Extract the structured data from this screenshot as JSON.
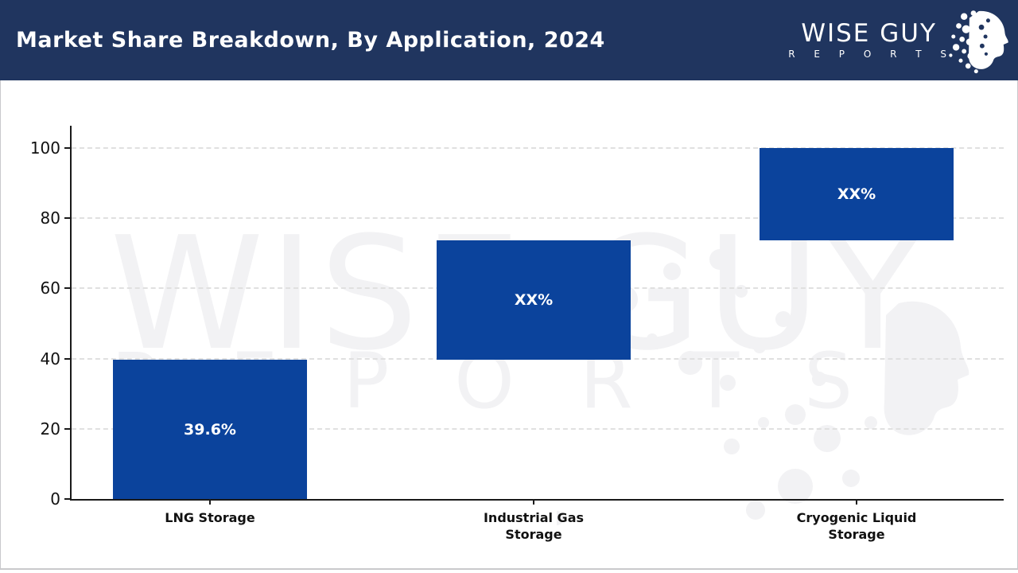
{
  "header": {
    "title": "Market Share Breakdown, By Application, 2024",
    "logo": {
      "line1": "WISE GUY",
      "line2": "R E P O R T S"
    }
  },
  "watermark": {
    "line1": "WISE GUY",
    "line2": "REPORTS"
  },
  "colors": {
    "header_bg": "#20355f",
    "bar": "#0b439c",
    "grid": "#e0e0e0",
    "axis": "#1a1a1a",
    "bar_label": "#ffffff",
    "watermark": "#f2f2f4"
  },
  "chart_data": {
    "type": "bar",
    "variant": "floating-cumulative-percent",
    "title": "Market Share Breakdown, By Application, 2024",
    "xlabel": "",
    "ylabel": "",
    "ylim": [
      0,
      100
    ],
    "yticks": [
      0,
      20,
      40,
      60,
      80,
      100
    ],
    "grid": "horizontal-dashed",
    "legend": "none",
    "bars": [
      {
        "category_lines": [
          "LNG Storage"
        ],
        "from": 0,
        "to": 39.6,
        "label": "39.6%"
      },
      {
        "category_lines": [
          "Industrial Gas",
          "Storage"
        ],
        "from": 39.6,
        "to": 73.6,
        "label": "XX%"
      },
      {
        "category_lines": [
          "Cryogenic Liquid",
          "Storage"
        ],
        "from": 73.6,
        "to": 100,
        "label": "XX%"
      }
    ]
  }
}
